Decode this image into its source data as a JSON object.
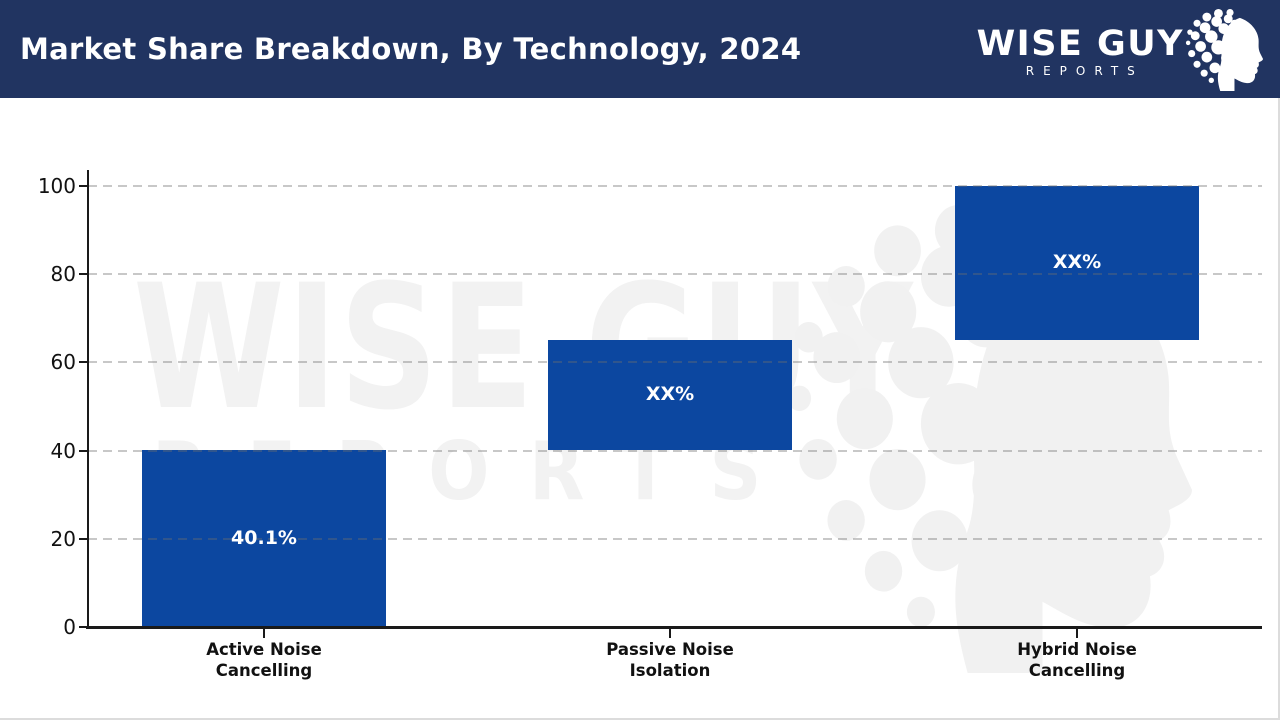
{
  "page": {
    "background": "#ffffff",
    "border_color": "#dcdcdc"
  },
  "header": {
    "background": "#213461",
    "title": "Market Share Breakdown, By Technology, 2024",
    "title_color": "#ffffff",
    "logo": {
      "word1": "WISE GUY",
      "word2": "REPORTS",
      "color": "#ffffff"
    }
  },
  "watermark": {
    "word1": "WISE GUY",
    "word2": "REPORTS",
    "color": "#f2f2f2"
  },
  "chart_data": {
    "type": "bar",
    "subtype": "floating-segment market-share breakdown (waterfall style)",
    "title": "Market Share Breakdown, By Technology, 2024",
    "categories": [
      "Active Noise Cancelling",
      "Passive Noise Isolation",
      "Hybrid Noise Cancelling"
    ],
    "category_lines": [
      [
        "Active Noise",
        "Cancelling"
      ],
      [
        "Passive Noise",
        "Isolation"
      ],
      [
        "Hybrid Noise",
        "Cancelling"
      ]
    ],
    "segments": [
      {
        "category": "Active Noise Cancelling",
        "from": 0,
        "to": 40.1,
        "value": 40.1,
        "label": "40.1%"
      },
      {
        "category": "Passive Noise Isolation",
        "from": 40.1,
        "to": 65,
        "value": 24.9,
        "label": "XX%"
      },
      {
        "category": "Hybrid Noise Cancelling",
        "from": 65,
        "to": 100,
        "value": 35,
        "label": "XX%"
      }
    ],
    "xlabel": "",
    "ylabel": "",
    "ylim": [
      0,
      104
    ],
    "yticks": [
      0,
      20,
      40,
      60,
      80,
      100
    ],
    "grid": {
      "horizontal": true,
      "style": "dashed",
      "color_over_white": "#cccccc"
    },
    "legend": null,
    "bar_color": "#0c47a0",
    "bar_label_color": "#ffffff",
    "axis_color": "#1a1a1a"
  }
}
